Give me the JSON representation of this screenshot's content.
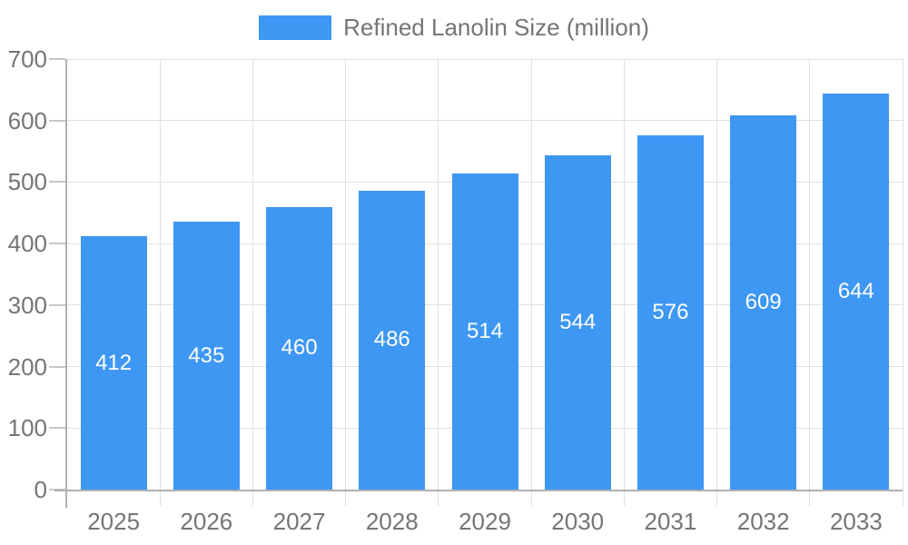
{
  "chart_data": {
    "type": "bar",
    "title": "",
    "legend": {
      "label": "Refined Lanolin Size (million)",
      "position": "top"
    },
    "categories": [
      "2025",
      "2026",
      "2027",
      "2028",
      "2029",
      "2030",
      "2031",
      "2032",
      "2033"
    ],
    "series": [
      {
        "name": "Refined Lanolin Size (million)",
        "values": [
          412,
          435,
          460,
          486,
          514,
          544,
          576,
          609,
          644
        ]
      }
    ],
    "bar_labels": [
      412,
      435,
      460,
      486,
      514,
      544,
      576,
      609,
      644
    ],
    "xlabel": "",
    "ylabel": "",
    "ylim": [
      0,
      700
    ],
    "ytick_step": 100,
    "yticks": [
      0,
      100,
      200,
      300,
      400,
      500,
      600,
      700
    ],
    "grid": true,
    "colors": {
      "bar": "#3e97f2",
      "bar_label": "#ffffff",
      "grid": "#e0e0e0",
      "axis": "#b0b0b0",
      "tick": "#c6c6c6",
      "text": "#757575",
      "background": "#ffffff"
    }
  }
}
